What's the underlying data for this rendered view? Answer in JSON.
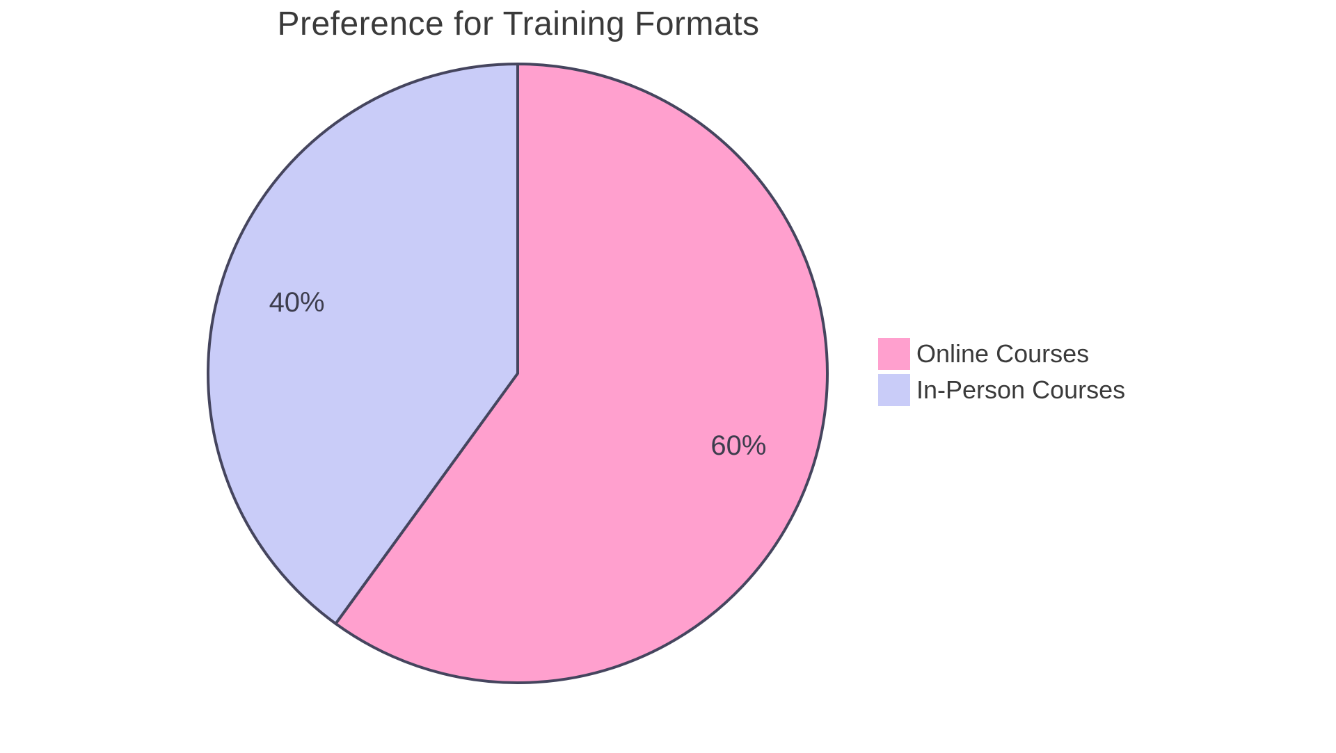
{
  "chart_data": {
    "type": "pie",
    "title": "Preference for Training Formats",
    "categories": [
      "Online Courses",
      "In-Person Courses"
    ],
    "values": [
      60,
      40
    ],
    "pct_labels": [
      "60%",
      "40%"
    ],
    "colors": [
      "#FFA0CE",
      "#C9CCF8"
    ],
    "start_angle": "top",
    "direction": "clockwise",
    "legend_position": "right",
    "slice_border_color": "#45455E",
    "slice_border_width": 4,
    "pct_label_distance": 0.75,
    "title_color": "#3A3A3A",
    "background_color": "#FFFFFF"
  }
}
